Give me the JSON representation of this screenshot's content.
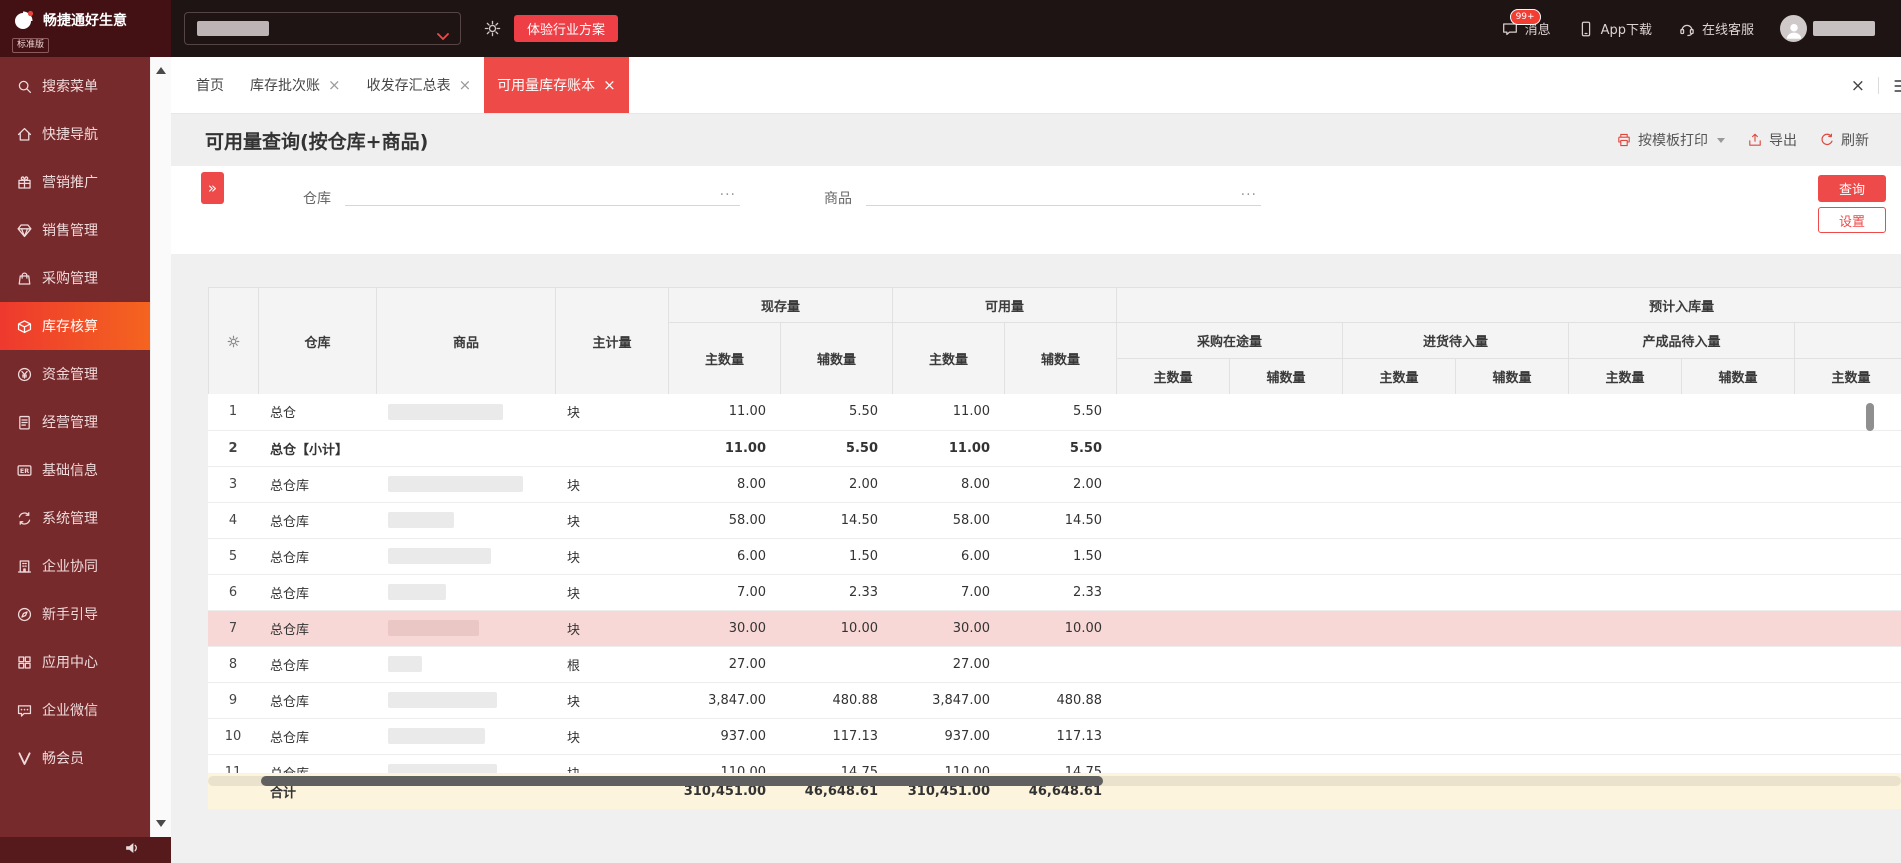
{
  "brand": {
    "name": "畅捷通好生意",
    "edition": "标准版"
  },
  "colors": {
    "accent_red": "#ee4a49",
    "sidebar_bg": "#772a2c",
    "topbar_bg": "#1f1414",
    "active_item_gradient": [
      "#ee392e",
      "#f4641f"
    ],
    "highlight_row_bg": "#f8d8d6",
    "total_row_bg": "#fcf4dc"
  },
  "topbar": {
    "experience_button": "体验行业方案",
    "messages": "消息",
    "messages_badge": "99+",
    "app_download": "App下载",
    "online_support": "在线客服"
  },
  "sidebar": {
    "items": [
      {
        "label": "搜索菜单",
        "icon": "search",
        "active": false
      },
      {
        "label": "快捷导航",
        "icon": "home",
        "active": false
      },
      {
        "label": "营销推广",
        "icon": "gift",
        "active": false
      },
      {
        "label": "销售管理",
        "icon": "diamond",
        "active": false
      },
      {
        "label": "采购管理",
        "icon": "bag",
        "active": false
      },
      {
        "label": "库存核算",
        "icon": "box",
        "active": true
      },
      {
        "label": "资金管理",
        "icon": "coin",
        "active": false
      },
      {
        "label": "经营管理",
        "icon": "doc",
        "active": false
      },
      {
        "label": "基础信息",
        "icon": "er",
        "active": false
      },
      {
        "label": "系统管理",
        "icon": "sync",
        "active": false
      },
      {
        "label": "企业协同",
        "icon": "org",
        "active": false
      },
      {
        "label": "新手引导",
        "icon": "compass",
        "active": false
      },
      {
        "label": "应用中心",
        "icon": "apps",
        "active": false
      },
      {
        "label": "企业微信",
        "icon": "chat",
        "active": false
      },
      {
        "label": "畅会员",
        "icon": "member",
        "active": false
      }
    ]
  },
  "tabs": [
    {
      "label": "首页",
      "closable": false,
      "active": false
    },
    {
      "label": "库存批次账",
      "closable": true,
      "active": false
    },
    {
      "label": "收发存汇总表",
      "closable": true,
      "active": false
    },
    {
      "label": "可用量库存账本",
      "closable": true,
      "active": true
    }
  ],
  "page": {
    "title": "可用量查询(按仓库+商品)",
    "print_button": "按模板打印",
    "export_button": "导出",
    "refresh_button": "刷新"
  },
  "filters": {
    "collapse_glyph": "»",
    "warehouse_label": "仓库",
    "product_label": "商品",
    "picker_dots": "···",
    "query_button": "查询",
    "settings_button": "设置"
  },
  "table": {
    "header": {
      "warehouse": "仓库",
      "product": "商品",
      "unit": "主计量",
      "qty_main": "主数量",
      "qty_aux": "辅数量",
      "group_onhand": "现存量",
      "group_available": "可用量",
      "group_expected_in": "预计入库量",
      "sub_purchase_transit": "采购在途量",
      "sub_incoming_pending": "进货待入量",
      "sub_finished_pending": "产成品待入量"
    },
    "rows": [
      {
        "num": "1",
        "warehouse": "总仓",
        "unit": "块",
        "values": [
          "11.00",
          "5.50",
          "11.00",
          "5.50"
        ],
        "redact": 115,
        "subtotal": false,
        "highlight": false
      },
      {
        "num": "2",
        "warehouse": "总仓【小计】",
        "unit": "",
        "values": [
          "11.00",
          "5.50",
          "11.00",
          "5.50"
        ],
        "redact": 0,
        "subtotal": true,
        "highlight": false
      },
      {
        "num": "3",
        "warehouse": "总仓库",
        "unit": "块",
        "values": [
          "8.00",
          "2.00",
          "8.00",
          "2.00"
        ],
        "redact": 135,
        "subtotal": false,
        "highlight": false
      },
      {
        "num": "4",
        "warehouse": "总仓库",
        "unit": "块",
        "values": [
          "58.00",
          "14.50",
          "58.00",
          "14.50"
        ],
        "redact": 66,
        "subtotal": false,
        "highlight": false
      },
      {
        "num": "5",
        "warehouse": "总仓库",
        "unit": "块",
        "values": [
          "6.00",
          "1.50",
          "6.00",
          "1.50"
        ],
        "redact": 103,
        "subtotal": false,
        "highlight": false
      },
      {
        "num": "6",
        "warehouse": "总仓库",
        "unit": "块",
        "values": [
          "7.00",
          "2.33",
          "7.00",
          "2.33"
        ],
        "redact": 58,
        "subtotal": false,
        "highlight": false
      },
      {
        "num": "7",
        "warehouse": "总仓库",
        "unit": "块",
        "values": [
          "30.00",
          "10.00",
          "30.00",
          "10.00"
        ],
        "redact": 91,
        "subtotal": false,
        "highlight": true
      },
      {
        "num": "8",
        "warehouse": "总仓库",
        "unit": "根",
        "values": [
          "27.00",
          "",
          "27.00",
          ""
        ],
        "redact": 34,
        "subtotal": false,
        "highlight": false
      },
      {
        "num": "9",
        "warehouse": "总仓库",
        "unit": "块",
        "values": [
          "3,847.00",
          "480.88",
          "3,847.00",
          "480.88"
        ],
        "redact": 109,
        "subtotal": false,
        "highlight": false
      },
      {
        "num": "10",
        "warehouse": "总仓库",
        "unit": "块",
        "values": [
          "937.00",
          "117.13",
          "937.00",
          "117.13"
        ],
        "redact": 97,
        "subtotal": false,
        "highlight": false
      },
      {
        "num": "11",
        "warehouse": "总仓库",
        "unit": "块",
        "values": [
          "110.00",
          "14.75",
          "110.00",
          "14.75"
        ],
        "redact": 109,
        "subtotal": false,
        "highlight": false
      }
    ],
    "total_label": "合计",
    "total_values": [
      "310,451.00",
      "46,648.61",
      "310,451.00",
      "46,648.61"
    ]
  }
}
